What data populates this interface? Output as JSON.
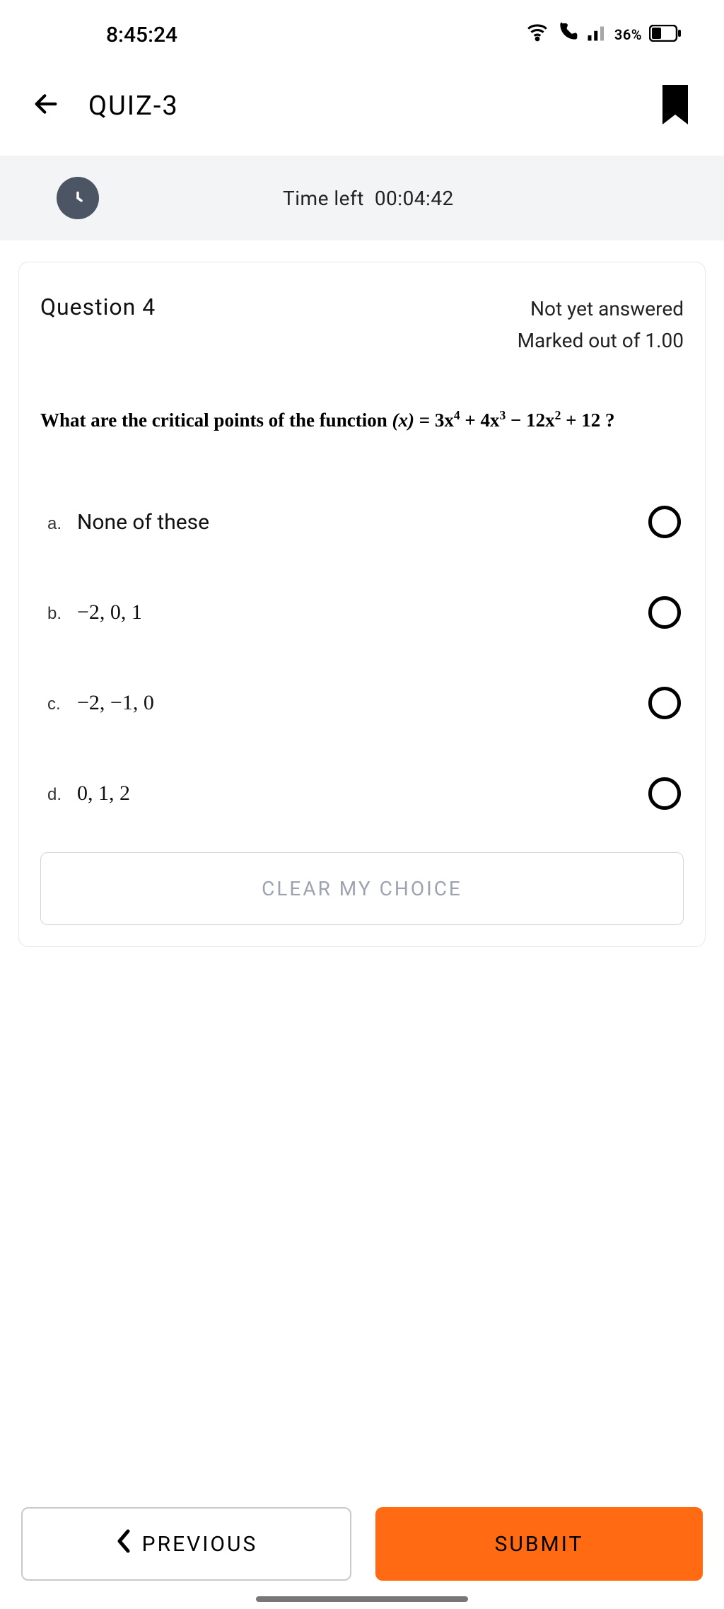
{
  "status": {
    "time": "8:45:24",
    "battery_pct": "36%"
  },
  "header": {
    "title": "QUIZ-3"
  },
  "timer": {
    "prefix": "Time left",
    "value": "00:04:42"
  },
  "question": {
    "number_label": "Question 4",
    "status_text": "Not yet answered",
    "marks_text": "Marked out of 1.00",
    "prompt_prefix": "What are the critical points of the function ",
    "prompt_fn_var": "(x)",
    "prompt_eq": " = 3x",
    "prompt_p1": "4",
    "prompt_t2": " + 4x",
    "prompt_p2": "3",
    "prompt_t3": " − 12x",
    "prompt_p3": "2",
    "prompt_t4": " + 12 ?",
    "options": [
      {
        "letter": "a.",
        "text": "None of these",
        "is_math": false
      },
      {
        "letter": "b.",
        "text": "−2, 0, 1",
        "is_math": true
      },
      {
        "letter": "c.",
        "text": "−2, −1, 0",
        "is_math": true
      },
      {
        "letter": "d.",
        "text": "0, 1, 2",
        "is_math": true
      }
    ],
    "clear_label": "CLEAR MY CHOICE"
  },
  "nav": {
    "prev_label": "PREVIOUS",
    "submit_label": "SUBMIT"
  },
  "colors": {
    "accent": "#ff6a13",
    "card_border": "#e5e7eb",
    "timer_bg": "#f3f4f6",
    "muted_text": "#9ca3af"
  }
}
